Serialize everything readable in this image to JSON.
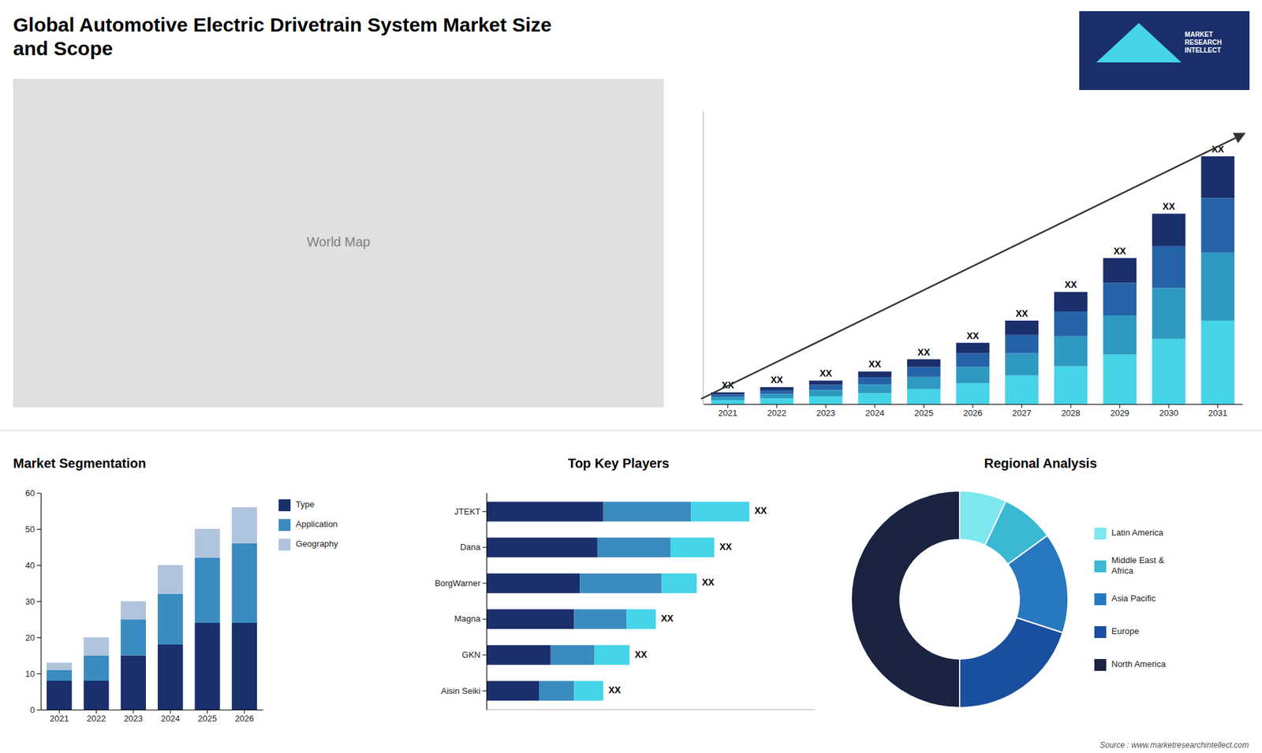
{
  "chart_data": [
    {
      "type": "bar",
      "title": "Global Automotive Electric Drivetrain System Market Size\nand Scope",
      "categories": [
        "2021",
        "2022",
        "2023",
        "2024",
        "2025",
        "2026",
        "2027",
        "2028",
        "2029",
        "2030",
        "2031"
      ],
      "series": [
        {
          "color": "#45d4e8",
          "values": [
            1.5,
            2.2,
            3.0,
            4.2,
            5.8,
            8.0,
            11.0,
            14.5,
            19.0,
            25.0,
            32.0
          ]
        },
        {
          "color": "#2e99c1",
          "values": [
            1.2,
            1.7,
            2.4,
            3.3,
            4.6,
            6.3,
            8.5,
            11.5,
            15.0,
            19.5,
            26.0
          ]
        },
        {
          "color": "#2563a8",
          "values": [
            1.0,
            1.4,
            2.0,
            2.8,
            3.8,
            5.2,
            7.0,
            9.5,
            12.5,
            16.0,
            21.0
          ]
        },
        {
          "color": "#1a2f6b",
          "values": [
            0.8,
            1.2,
            1.6,
            2.2,
            3.0,
            4.0,
            5.5,
            7.5,
            9.5,
            12.5,
            16.0
          ]
        }
      ],
      "stacked": true,
      "ylim": [
        0,
        112.1
      ],
      "tick_labels": "x",
      "grid": false,
      "annotations": [
        "XX",
        "XX",
        "XX",
        "XX",
        "XX",
        "XX",
        "XX",
        "XX",
        "XX",
        "XX",
        "XX"
      ]
    },
    {
      "type": "bar",
      "title": "Market Segmentation",
      "categories": [
        "2021",
        "2022",
        "2023",
        "2024",
        "2025",
        "2026"
      ],
      "series": [
        {
          "name": "Type",
          "color": "#1a2f6b",
          "values": [
            8,
            8,
            15,
            18,
            24,
            24
          ]
        },
        {
          "name": "Application",
          "color": "#3a8bbf",
          "values": [
            3,
            7,
            10,
            14,
            18,
            22
          ]
        },
        {
          "name": "Geography",
          "color": "#b0c4de",
          "values": [
            2,
            5,
            5,
            8,
            8,
            10
          ]
        }
      ],
      "stacked": true,
      "ylim": [
        0,
        60
      ],
      "yticks": [
        0,
        10,
        20,
        30,
        40,
        50,
        60
      ],
      "legend": "upper right",
      "grid": false
    },
    {
      "type": "bar",
      "orientation": "horizontal",
      "title": "Top Key Players",
      "categories": [
        "JTEKT",
        "Dana",
        "BorgWarner",
        "Magna",
        "GKN",
        "Aisin Seiki"
      ],
      "series": [
        {
          "color": "#1a2f6b",
          "values": [
            40,
            38,
            32,
            30,
            22,
            18
          ]
        },
        {
          "color": "#3a8bbf",
          "values": [
            30,
            25,
            28,
            18,
            15,
            12
          ]
        },
        {
          "color": "#45d4e8",
          "values": [
            20,
            15,
            12,
            10,
            12,
            10
          ]
        }
      ],
      "stacked": true,
      "xlim": [
        0,
        112.5
      ],
      "tick_labels": "y",
      "grid": false,
      "annotations": [
        "XX",
        "XX",
        "XX",
        "XX",
        "XX",
        "XX"
      ]
    },
    {
      "type": "pie",
      "title": "Regional Analysis",
      "categories": [
        "Latin America",
        "Middle East &\nAfrica",
        "Asia Pacific",
        "Europe",
        "North America"
      ],
      "values": [
        7,
        8,
        15,
        20,
        50
      ],
      "colors": [
        "#7de8f0",
        "#3ab8d4",
        "#2878c0",
        "#1a4fa0",
        "#1a2340"
      ],
      "legend": "right"
    }
  ],
  "annotations": [
    "World Map",
    "MARKET\nRESEARCH\nINTELLECT",
    "Source : www.marketresearchintellect.com"
  ]
}
